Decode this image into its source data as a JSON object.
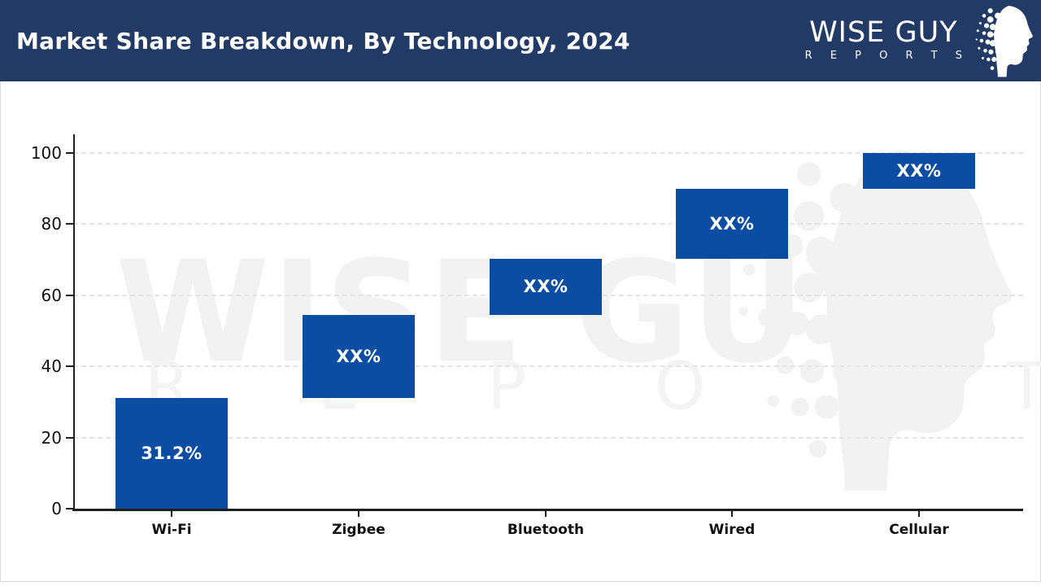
{
  "header": {
    "title": "Market Share Breakdown, By Technology, 2024",
    "logo": {
      "line1": "WISE GUY",
      "line2": "R E P O R T S"
    }
  },
  "watermark": {
    "line1": "WISE GUY",
    "line2": "R E P O R T S"
  },
  "colors": {
    "header_bg": "#213A66",
    "bar": "#0B4DA2",
    "axis": "#1F1F1F",
    "gridline": "#E4E4E4",
    "watermark": "#F2F2F2",
    "label_on_bar": "#FFFFFF"
  },
  "chart_data": {
    "type": "bar",
    "subtype": "waterfall",
    "title": "Market Share Breakdown, By Technology, 2024",
    "categories": [
      "Wi-Fi",
      "Zigbee",
      "Bluetooth",
      "Wired",
      "Cellular"
    ],
    "segments": [
      {
        "category": "Wi-Fi",
        "start": 0,
        "end": 31.2,
        "label": "31.2%"
      },
      {
        "category": "Zigbee",
        "start": 31.2,
        "end": 54.4,
        "label": "XX%"
      },
      {
        "category": "Bluetooth",
        "start": 54.4,
        "end": 70.2,
        "label": "XX%"
      },
      {
        "category": "Wired",
        "start": 70.2,
        "end": 89.9,
        "label": "XX%"
      },
      {
        "category": "Cellular",
        "start": 89.9,
        "end": 100,
        "label": "XX%"
      }
    ],
    "xlabel": "",
    "ylabel": "",
    "y_ticks": [
      0,
      20,
      40,
      60,
      80,
      100
    ],
    "ylim": [
      0,
      105
    ],
    "grid": "dashed-horizontal",
    "legend": "none"
  }
}
